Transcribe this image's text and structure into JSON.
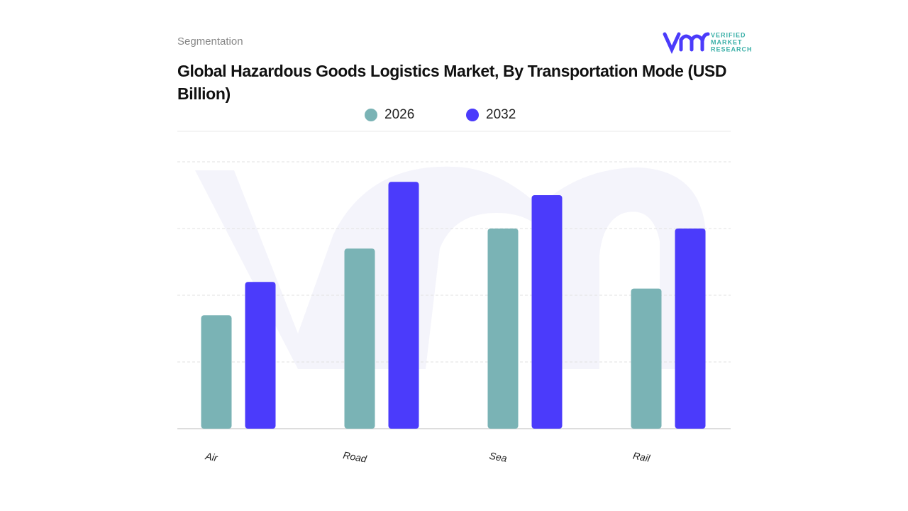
{
  "header": {
    "subtitle": "Segmentation",
    "logo": [
      "VERIFIED",
      "MARKET",
      "RESEARCH"
    ]
  },
  "chart_data": {
    "type": "bar",
    "title": "Global Hazardous Goods Logistics Market, By Transportation Mode (USD Billion)",
    "categories": [
      "Air",
      "Road",
      "Sea",
      "Rail"
    ],
    "series": [
      {
        "name": "2026",
        "color": "#7ab3b5",
        "values": [
          1.7,
          2.7,
          3.0,
          2.1
        ]
      },
      {
        "name": "2032",
        "color": "#4b3bfb",
        "values": [
          2.2,
          3.7,
          3.5,
          3.0
        ]
      }
    ],
    "ylim": [
      0,
      4
    ],
    "yticks": [
      1,
      2,
      3,
      4
    ],
    "grid": true
  }
}
